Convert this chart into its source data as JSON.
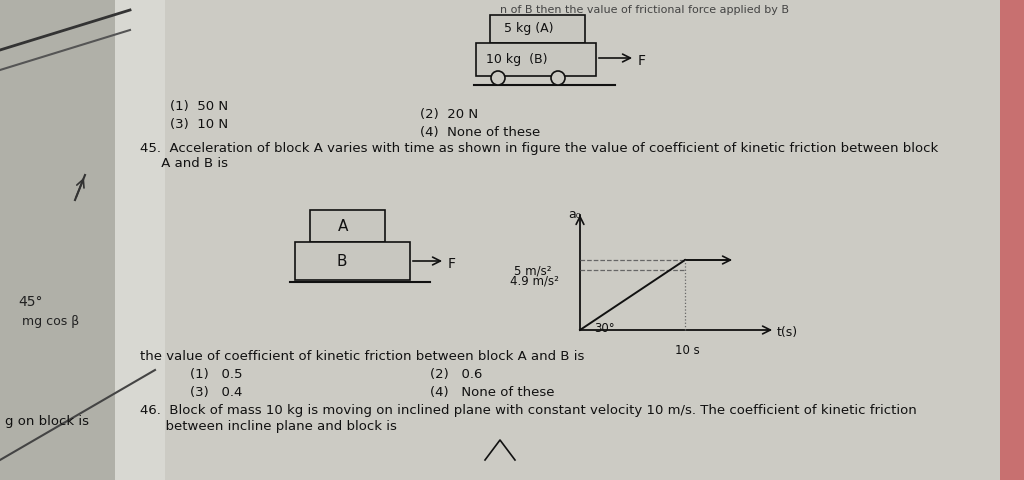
{
  "bg_color": "#cccbc4",
  "text_color": "#111111",
  "title_top_right": "n of B then the value of frictional force applied by B",
  "q44_opt1": "(1)  50 N",
  "q44_opt2": "(2)  20 N",
  "q44_opt3": "(3)  10 N",
  "q44_opt4": "(4)  None of these",
  "q45_line1": "45.  Acceleration of block A varies with time as shown in figure the value of coefficient of kinetic friction between block",
  "q45_line2": "     A and B is",
  "q45_sub": "the value of coefficient of kinetic friction between block A and B is",
  "q45_opt1": "(1)   0.5",
  "q45_opt2": "(2)   0.6",
  "q45_opt3": "(3)   0.4",
  "q45_opt4": "(4)   None of these",
  "q46_line1": "46.  Block of mass 10 kg is moving on inclined plane with constant velocity 10 m/s. The coefficient of kinetic friction",
  "q46_line2": "      between incline plane and block is",
  "graph_y1": "5 m/s²",
  "graph_y2": "4.9 m/s²",
  "graph_angle": "30°",
  "graph_t_label": "t(s)",
  "graph_t_val": "10 s",
  "graph_a_label": "a₀",
  "left_deg": "45°",
  "left_mg": "mg cos β",
  "left_bottom": "g on block is",
  "block_A": "A",
  "block_B": "B",
  "block5kg": "5 kg (A)",
  "block10kg": "10 kg  (B)",
  "force_F": "F",
  "right_strip_color": "#c87070"
}
